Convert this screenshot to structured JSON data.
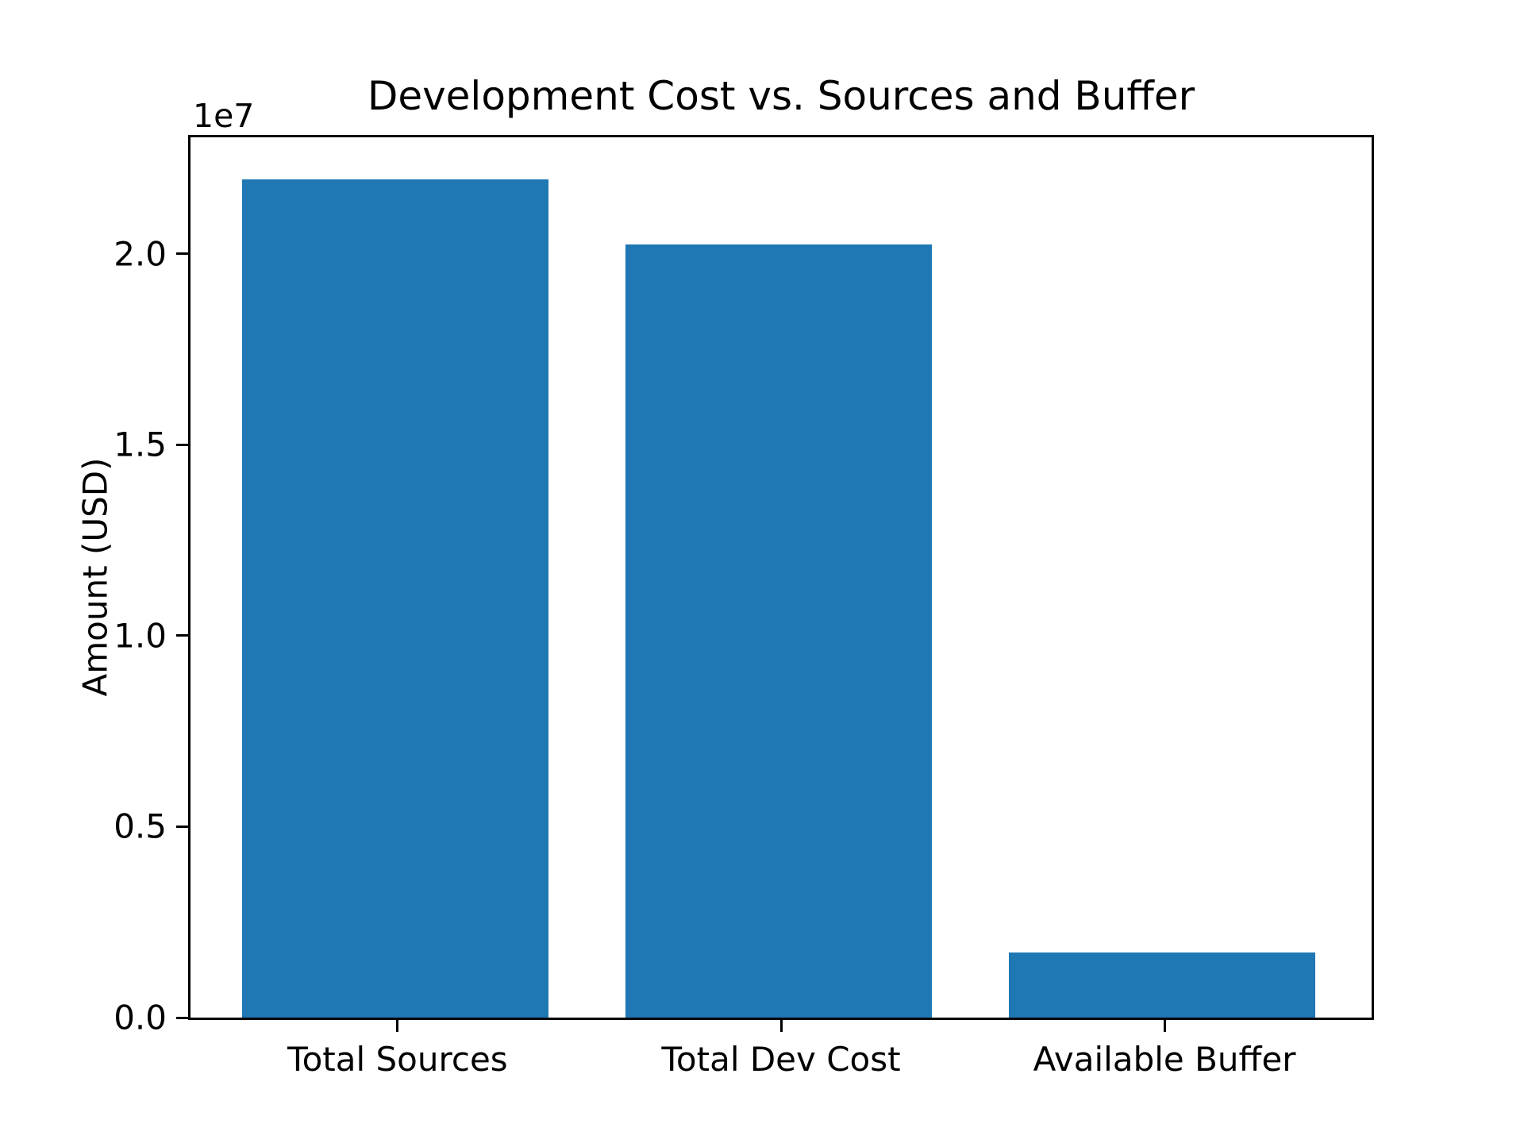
{
  "figure": {
    "title": "Development Cost vs. Sources and Buffer",
    "ylabel": "Amount (USD)",
    "offset_text": "1e7",
    "background_color": "#ffffff",
    "text_color": "#000000",
    "bar_color": "#1f77b4"
  },
  "chart_data": {
    "type": "bar",
    "title": "Development Cost vs. Sources and Buffer",
    "xlabel": "",
    "ylabel": "Amount (USD)",
    "categories": [
      "Total Sources",
      "Total Dev Cost",
      "Available Buffer"
    ],
    "values": [
      21950000,
      20250000,
      1700000
    ],
    "ylim": [
      0,
      23047500
    ],
    "ytick_values": [
      0,
      5000000,
      10000000,
      15000000,
      20000000
    ],
    "ytick_labels": [
      "0.0",
      "0.5",
      "1.0",
      "1.5",
      "2.0"
    ],
    "y_scale_multiplier": "1e7",
    "bar_color": "#1f77b4",
    "grid": false,
    "legend_position": "none"
  }
}
